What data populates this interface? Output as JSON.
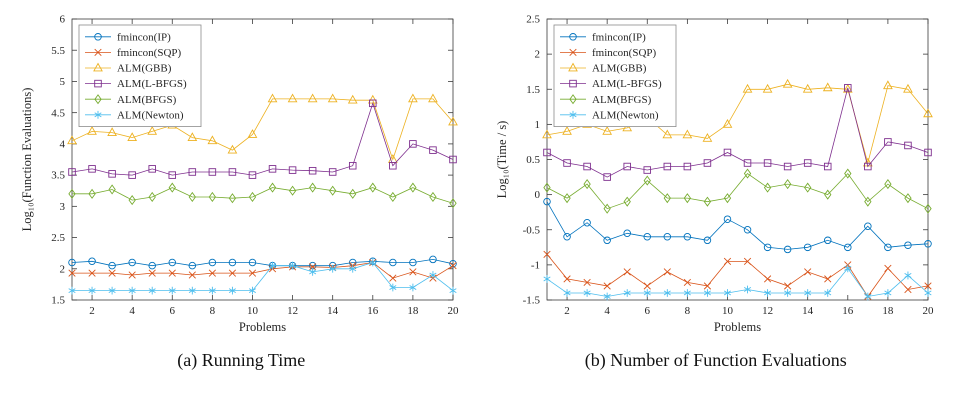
{
  "figure": {
    "background": "#ffffff",
    "axis_color": "#3b3b3b"
  },
  "chart_data": [
    {
      "type": "line",
      "caption": "(a)  Running Time",
      "xlabel": "Problems",
      "ylabel": "Log₁₀(Function Evaluations)",
      "xlim": [
        1,
        20
      ],
      "ylim": [
        1.5,
        6
      ],
      "xticks": [
        2,
        4,
        6,
        8,
        10,
        12,
        14,
        16,
        18,
        20
      ],
      "yticks": [
        1.5,
        2,
        2.5,
        3,
        3.5,
        4,
        4.5,
        5,
        5.5,
        6
      ],
      "grid": false,
      "legend_position": "top-left",
      "x": [
        1,
        2,
        3,
        4,
        5,
        6,
        7,
        8,
        9,
        10,
        11,
        12,
        13,
        14,
        15,
        16,
        17,
        18,
        19,
        20
      ],
      "series": [
        {
          "name": "fmincon(IP)",
          "marker": "circle",
          "color": "#0072BD",
          "values": [
            2.1,
            2.12,
            2.05,
            2.1,
            2.05,
            2.1,
            2.05,
            2.1,
            2.1,
            2.1,
            2.05,
            2.05,
            2.05,
            2.05,
            2.1,
            2.12,
            2.1,
            2.1,
            2.15,
            2.08
          ]
        },
        {
          "name": "fmincon(SQP)",
          "marker": "x",
          "color": "#D95319",
          "values": [
            1.93,
            1.93,
            1.93,
            1.9,
            1.93,
            1.93,
            1.9,
            1.93,
            1.93,
            1.93,
            2.0,
            2.03,
            2.03,
            2.02,
            2.05,
            2.1,
            1.85,
            1.95,
            1.85,
            2.05
          ]
        },
        {
          "name": "ALM(GBB)",
          "marker": "triangle-up",
          "color": "#EDB120",
          "values": [
            4.05,
            4.2,
            4.18,
            4.1,
            4.2,
            4.3,
            4.1,
            4.05,
            3.9,
            4.15,
            4.72,
            4.72,
            4.72,
            4.72,
            4.7,
            4.7,
            3.75,
            4.72,
            4.72,
            4.35
          ]
        },
        {
          "name": "ALM(L-BFGS)",
          "marker": "square",
          "color": "#7E2F8E",
          "values": [
            3.55,
            3.6,
            3.52,
            3.5,
            3.6,
            3.5,
            3.55,
            3.55,
            3.55,
            3.5,
            3.6,
            3.58,
            3.57,
            3.55,
            3.65,
            4.65,
            3.65,
            4.0,
            3.9,
            3.75
          ]
        },
        {
          "name": "ALM(BFGS)",
          "marker": "diamond",
          "color": "#77AC30",
          "values": [
            3.2,
            3.2,
            3.27,
            3.1,
            3.15,
            3.3,
            3.15,
            3.15,
            3.13,
            3.15,
            3.3,
            3.25,
            3.3,
            3.25,
            3.2,
            3.3,
            3.15,
            3.3,
            3.15,
            3.05
          ]
        },
        {
          "name": "ALM(Newton)",
          "marker": "asterisk",
          "color": "#4DBEEE",
          "values": [
            1.65,
            1.65,
            1.65,
            1.65,
            1.65,
            1.65,
            1.65,
            1.65,
            1.65,
            1.65,
            2.05,
            2.05,
            1.95,
            2.0,
            2.0,
            2.1,
            1.7,
            1.7,
            1.9,
            1.65
          ]
        }
      ]
    },
    {
      "type": "line",
      "caption": "(b)  Number of Function Evaluations",
      "xlabel": "Problems",
      "ylabel": "Log₁₀(Time / s)",
      "xlim": [
        1,
        20
      ],
      "ylim": [
        -1.5,
        2.5
      ],
      "xticks": [
        2,
        4,
        6,
        8,
        10,
        12,
        14,
        16,
        18,
        20
      ],
      "yticks": [
        -1.5,
        -1,
        -0.5,
        0,
        0.5,
        1,
        1.5,
        2,
        2.5
      ],
      "grid": false,
      "legend_position": "top-left",
      "x": [
        1,
        2,
        3,
        4,
        5,
        6,
        7,
        8,
        9,
        10,
        11,
        12,
        13,
        14,
        15,
        16,
        17,
        18,
        19,
        20
      ],
      "series": [
        {
          "name": "fmincon(IP)",
          "marker": "circle",
          "color": "#0072BD",
          "values": [
            -0.1,
            -0.6,
            -0.4,
            -0.65,
            -0.55,
            -0.6,
            -0.6,
            -0.6,
            -0.65,
            -0.35,
            -0.5,
            -0.75,
            -0.78,
            -0.75,
            -0.65,
            -0.75,
            -0.45,
            -0.75,
            -0.72,
            -0.7
          ]
        },
        {
          "name": "fmincon(SQP)",
          "marker": "x",
          "color": "#D95319",
          "values": [
            -0.85,
            -1.2,
            -1.25,
            -1.3,
            -1.1,
            -1.3,
            -1.1,
            -1.25,
            -1.3,
            -0.95,
            -0.95,
            -1.2,
            -1.3,
            -1.1,
            -1.2,
            -1.0,
            -1.45,
            -1.05,
            -1.35,
            -1.3
          ]
        },
        {
          "name": "ALM(GBB)",
          "marker": "triangle-up",
          "color": "#EDB120",
          "values": [
            0.85,
            0.9,
            1.0,
            0.9,
            0.95,
            1.1,
            0.85,
            0.85,
            0.8,
            1.0,
            1.5,
            1.5,
            1.57,
            1.5,
            1.52,
            1.5,
            0.45,
            1.55,
            1.5,
            1.15
          ]
        },
        {
          "name": "ALM(L-BFGS)",
          "marker": "square",
          "color": "#7E2F8E",
          "values": [
            0.6,
            0.45,
            0.4,
            0.25,
            0.4,
            0.35,
            0.4,
            0.4,
            0.45,
            0.6,
            0.45,
            0.45,
            0.4,
            0.45,
            0.4,
            1.52,
            0.4,
            0.75,
            0.7,
            0.6
          ]
        },
        {
          "name": "ALM(BFGS)",
          "marker": "diamond",
          "color": "#77AC30",
          "values": [
            0.1,
            -0.05,
            0.15,
            -0.2,
            -0.1,
            0.2,
            -0.05,
            -0.05,
            -0.1,
            -0.05,
            0.3,
            0.1,
            0.15,
            0.1,
            0.0,
            0.3,
            -0.1,
            0.15,
            -0.05,
            -0.2
          ]
        },
        {
          "name": "ALM(Newton)",
          "marker": "asterisk",
          "color": "#4DBEEE",
          "values": [
            -1.2,
            -1.4,
            -1.4,
            -1.45,
            -1.4,
            -1.4,
            -1.4,
            -1.4,
            -1.4,
            -1.4,
            -1.35,
            -1.4,
            -1.4,
            -1.4,
            -1.4,
            -1.05,
            -1.45,
            -1.4,
            -1.15,
            -1.4
          ]
        }
      ]
    }
  ]
}
